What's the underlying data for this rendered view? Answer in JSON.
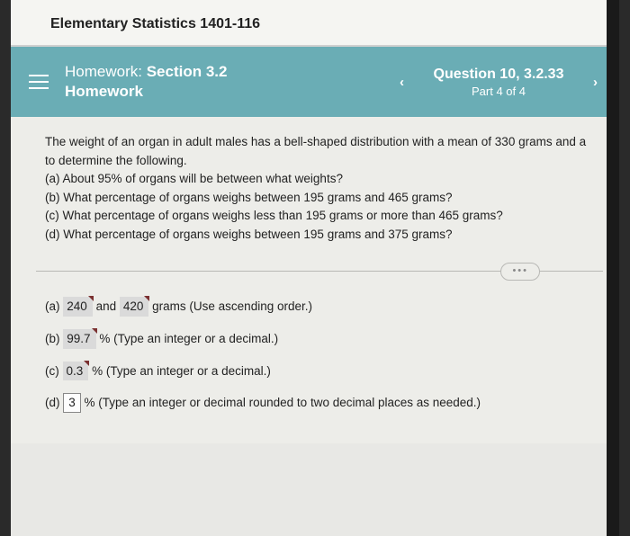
{
  "course": {
    "title": "Elementary Statistics 1401-116"
  },
  "header": {
    "homework_label": "Homework:",
    "section": "Section 3.2",
    "subtitle": "Homework",
    "question_label": "Question 10, 3.2.33",
    "part_label": "Part 4 of 4"
  },
  "prompt": {
    "intro": "The weight of an organ in adult males has a bell-shaped distribution with a mean of 330 grams and a",
    "line2": "to determine the following.",
    "a": "(a) About 95% of organs will be between what weights?",
    "b": "(b) What percentage of organs weighs between 195 grams and 465 grams?",
    "c": "(c) What percentage of organs weighs less than 195 grams or more than 465 grams?",
    "d": "(d) What percentage of organs weighs between 195 grams and 375 grams?"
  },
  "pill": "•••",
  "answers": {
    "a": {
      "label": "(a)",
      "v1": "240",
      "mid": "and",
      "v2": "420",
      "tail": "grams (Use ascending order.)"
    },
    "b": {
      "label": "(b)",
      "v": "99.7",
      "unit": "% (Type an integer or a decimal.)"
    },
    "c": {
      "label": "(c)",
      "v": "0.3",
      "unit": "% (Type an integer or a decimal.)"
    },
    "d": {
      "label": "(d)",
      "v": "3",
      "unit": "% (Type an integer or decimal rounded to two decimal places as needed.)"
    }
  },
  "colors": {
    "teal": "#6aadb5",
    "page_bg": "#e8e8e5",
    "field_bg": "#dadada",
    "corner": "#7a3030"
  }
}
